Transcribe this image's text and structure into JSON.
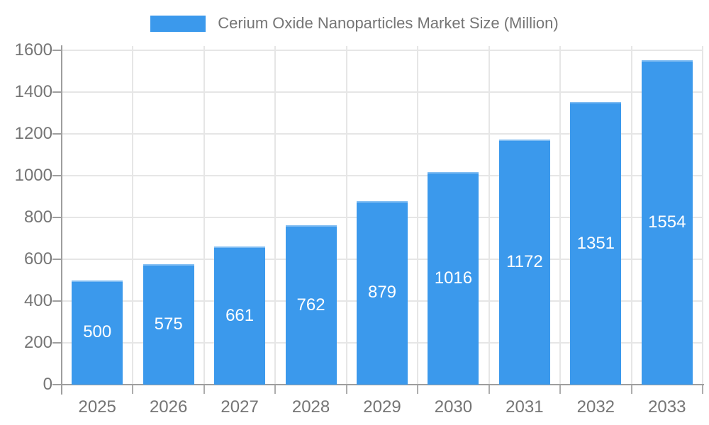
{
  "chart_data": {
    "type": "bar",
    "title": "Cerium Oxide Nanoparticles Market Size (Million)",
    "categories": [
      "2025",
      "2026",
      "2027",
      "2028",
      "2029",
      "2030",
      "2031",
      "2032",
      "2033"
    ],
    "values": [
      500,
      575,
      661,
      762,
      879,
      1016,
      1172,
      1351,
      1554
    ],
    "xlabel": "",
    "ylabel": "",
    "ylim": [
      0,
      1600
    ],
    "ytick_step": 200,
    "grid": true,
    "legend_position": "top-center",
    "bar_label_position": "inside-center",
    "colors": {
      "bar": "#3b99ec",
      "bar_label": "#ffffff",
      "text": "#757575",
      "axis": "#9e9e9e",
      "grid": "#e6e6e6",
      "background": "#ffffff"
    }
  }
}
